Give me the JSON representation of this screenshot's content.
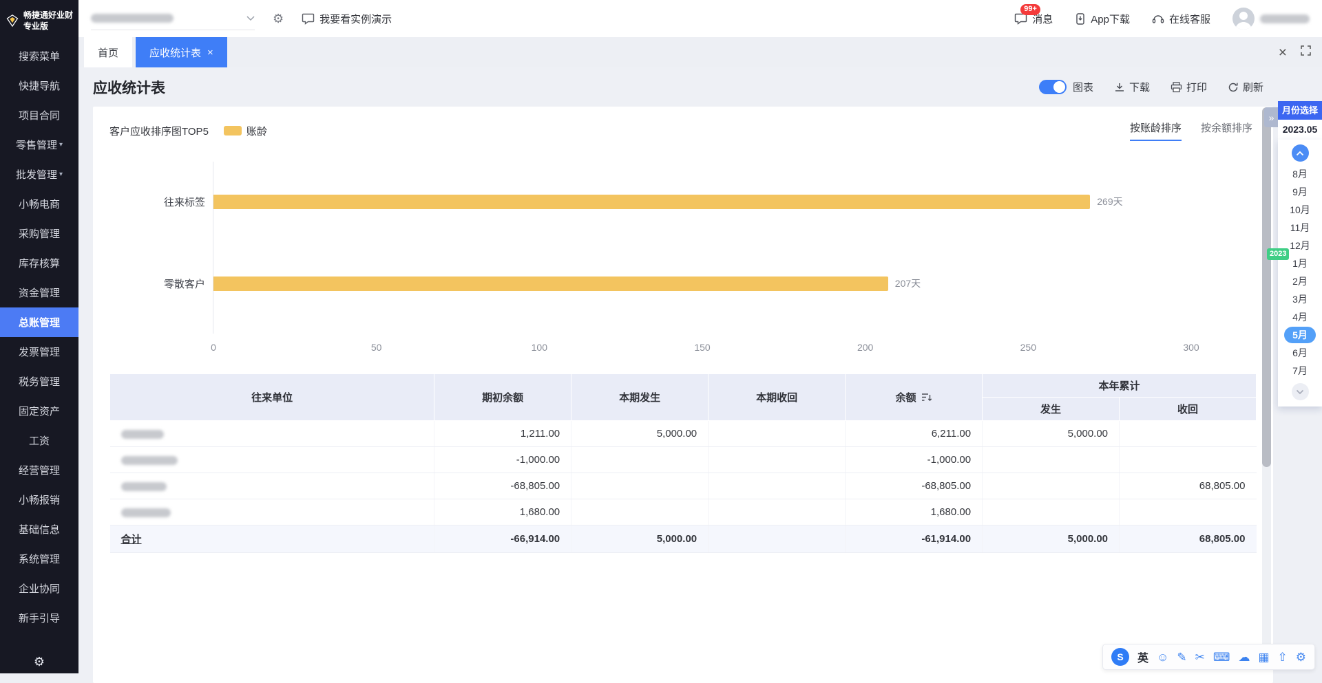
{
  "app": {
    "logo_title": "畅捷通好业财",
    "logo_subtitle": "专业版"
  },
  "sidebar": {
    "items": [
      {
        "label": "搜索菜单",
        "active": false,
        "arrow": false
      },
      {
        "label": "快捷导航",
        "active": false,
        "arrow": false
      },
      {
        "label": "项目合同",
        "active": false,
        "arrow": false
      },
      {
        "label": "零售管理",
        "active": false,
        "arrow": true
      },
      {
        "label": "批发管理",
        "active": false,
        "arrow": true
      },
      {
        "label": "小畅电商",
        "active": false,
        "arrow": false
      },
      {
        "label": "采购管理",
        "active": false,
        "arrow": false
      },
      {
        "label": "库存核算",
        "active": false,
        "arrow": false
      },
      {
        "label": "资金管理",
        "active": false,
        "arrow": false
      },
      {
        "label": "总账管理",
        "active": true,
        "arrow": false
      },
      {
        "label": "发票管理",
        "active": false,
        "arrow": false
      },
      {
        "label": "税务管理",
        "active": false,
        "arrow": false
      },
      {
        "label": "固定资产",
        "active": false,
        "arrow": false
      },
      {
        "label": "工资",
        "active": false,
        "arrow": false
      },
      {
        "label": "经营管理",
        "active": false,
        "arrow": false
      },
      {
        "label": "小畅报销",
        "active": false,
        "arrow": false
      },
      {
        "label": "基础信息",
        "active": false,
        "arrow": false
      },
      {
        "label": "系统管理",
        "active": false,
        "arrow": false
      },
      {
        "label": "企业协同",
        "active": false,
        "arrow": false
      },
      {
        "label": "新手引导",
        "active": false,
        "arrow": false
      }
    ]
  },
  "topbar": {
    "demo_link": "我要看实例演示",
    "messages": {
      "label": "消息",
      "badge": "99+"
    },
    "app_download": "App下载",
    "support": "在线客服"
  },
  "tabs": [
    {
      "label": "首页",
      "active": false,
      "closable": false
    },
    {
      "label": "应收统计表",
      "active": true,
      "closable": true
    }
  ],
  "page": {
    "title": "应收统计表",
    "toggle_label": "图表",
    "download": "下载",
    "print": "打印",
    "refresh": "刷新"
  },
  "chart_data": {
    "type": "bar",
    "orientation": "horizontal",
    "title": "客户应收排序图TOP5",
    "legend": [
      {
        "label": "账龄",
        "color": "#F3C45F"
      }
    ],
    "sort_tabs": [
      {
        "label": "按账龄排序",
        "active": true
      },
      {
        "label": "按余额排序",
        "active": false
      }
    ],
    "categories": [
      "往来标签",
      "零散客户"
    ],
    "values": [
      269,
      207
    ],
    "value_labels": [
      "269天",
      "207天"
    ],
    "unit": "天",
    "x_ticks": [
      0,
      50,
      100,
      150,
      200,
      250,
      300
    ],
    "xlim": [
      0,
      300
    ],
    "bar_color": "#F3C45F",
    "grid": false
  },
  "table": {
    "columns": [
      "往来单位",
      "期初余额",
      "本期发生",
      "本期收回",
      "余额"
    ],
    "group_header": {
      "label": "本年累计",
      "children": [
        "发生",
        "收回"
      ]
    },
    "rows": [
      {
        "redacted_name": true,
        "values": [
          "1,211.00",
          "5,000.00",
          "",
          "6,211.00",
          "5,000.00",
          ""
        ]
      },
      {
        "redacted_name": true,
        "values": [
          "-1,000.00",
          "",
          "",
          "-1,000.00",
          "",
          ""
        ]
      },
      {
        "redacted_name": true,
        "values": [
          "-68,805.00",
          "",
          "",
          "-68,805.00",
          "",
          "68,805.00"
        ]
      },
      {
        "redacted_name": true,
        "values": [
          "1,680.00",
          "",
          "",
          "1,680.00",
          "",
          ""
        ]
      }
    ],
    "total": {
      "label": "合计",
      "values": [
        "-66,914.00",
        "5,000.00",
        "",
        "-61,914.00",
        "5,000.00",
        "68,805.00"
      ]
    }
  },
  "month_panel": {
    "title": "月份选择",
    "current": "2023.05",
    "year_badge": "2023",
    "months": [
      "8月",
      "9月",
      "10月",
      "11月",
      "12月",
      "1月",
      "2月",
      "3月",
      "4月",
      "5月",
      "6月",
      "7月"
    ],
    "active_month": "5月"
  },
  "ime": {
    "logo_glyph": "S",
    "mode": "英",
    "icons": [
      {
        "name": "smiley",
        "glyph": "☺"
      },
      {
        "name": "pen",
        "glyph": "✎"
      },
      {
        "name": "scissors",
        "glyph": "✂"
      },
      {
        "name": "keyboard",
        "glyph": "⌨"
      },
      {
        "name": "cloud",
        "glyph": "☁"
      },
      {
        "name": "grid",
        "glyph": "▦"
      },
      {
        "name": "arrow-up",
        "glyph": "⇧"
      },
      {
        "name": "gear",
        "glyph": "⚙"
      }
    ]
  }
}
